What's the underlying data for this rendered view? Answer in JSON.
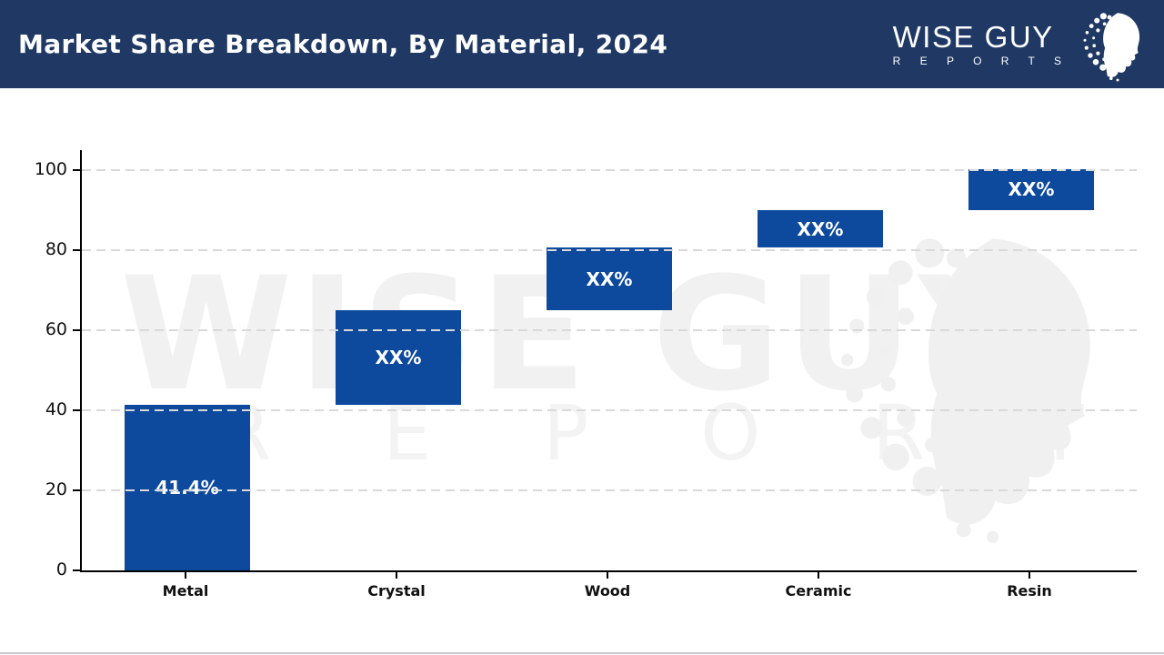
{
  "header": {
    "title": "Market Share Breakdown, By Material, 2024",
    "logo": {
      "name": "WISE GUY",
      "tagline": "R E P O R T S"
    }
  },
  "watermark": {
    "line1": "WISE GUY",
    "line2": "R E P O R T S"
  },
  "chart_data": {
    "type": "bar",
    "subtype": "waterfall",
    "title": "Market Share Breakdown, By Material, 2024",
    "categories": [
      "Metal",
      "Crystal",
      "Wood",
      "Ceramic",
      "Resin"
    ],
    "segments": [
      {
        "category": "Metal",
        "start": 0,
        "end": 41.4,
        "label": "41.4%"
      },
      {
        "category": "Crystal",
        "start": 41.4,
        "end": 65,
        "label": "XX%"
      },
      {
        "category": "Wood",
        "start": 65,
        "end": 80.6,
        "label": "XX%"
      },
      {
        "category": "Ceramic",
        "start": 80.6,
        "end": 90,
        "label": "XX%"
      },
      {
        "category": "Resin",
        "start": 90,
        "end": 100.3,
        "label": "XX%"
      }
    ],
    "yticks": [
      0,
      20,
      40,
      60,
      80,
      100
    ],
    "ylim": [
      0,
      105
    ],
    "xlabel": "",
    "ylabel": "",
    "grid": "horizontal-dashed",
    "legend": "none",
    "bar_color": "#0D4A9E",
    "bar_label_color": "#FFFFFF"
  },
  "colors": {
    "header_bg": "#1F3864",
    "bar": "#0D4A9E",
    "gridline": "#D9D9D9",
    "axis": "#000000",
    "watermark": "#F0F0F0",
    "footer_line": "#C7C7CD"
  }
}
